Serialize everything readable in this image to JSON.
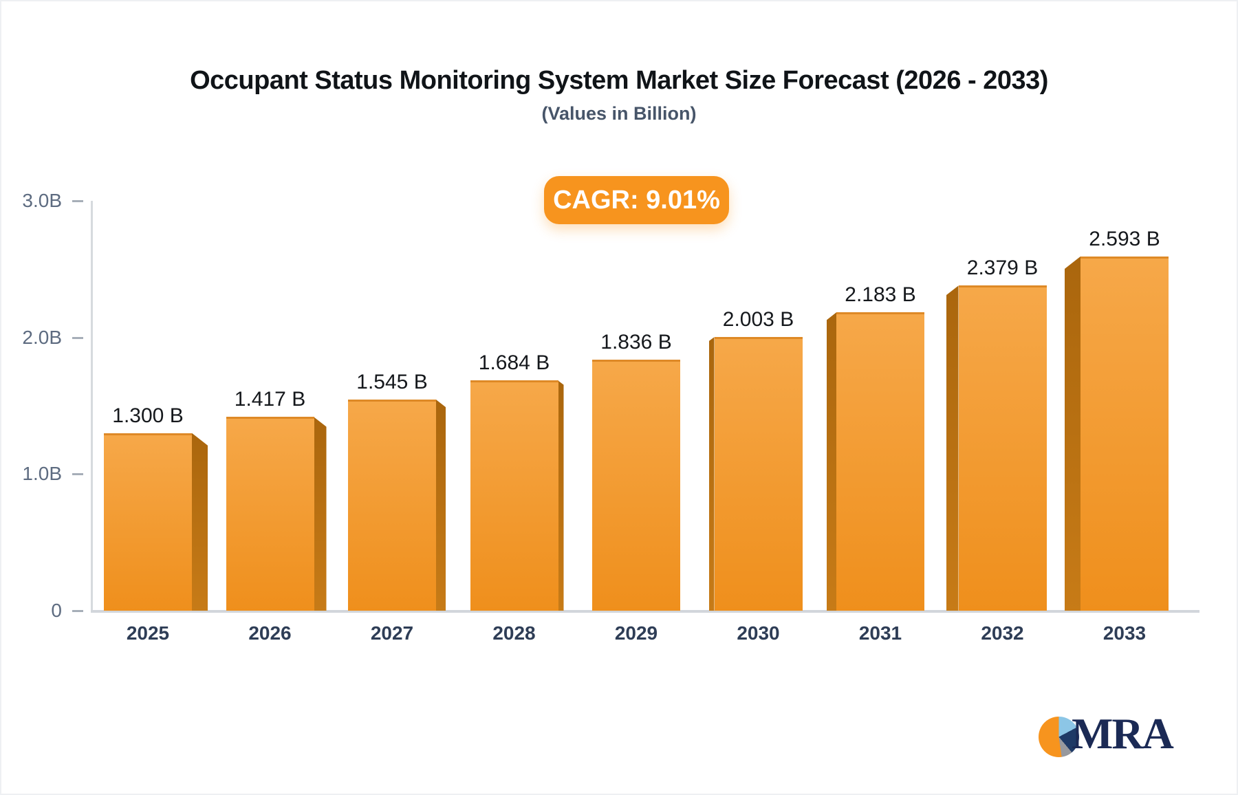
{
  "chart_data": {
    "type": "bar",
    "title": "Occupant Status Monitoring System Market Size Forecast (2026 - 2033)",
    "subtitle": "(Values in Billion)",
    "annotation": "CAGR: 9.01%",
    "categories": [
      "2025",
      "2026",
      "2027",
      "2028",
      "2029",
      "2030",
      "2031",
      "2032",
      "2033"
    ],
    "values": [
      1.3,
      1.417,
      1.545,
      1.684,
      1.836,
      2.003,
      2.183,
      2.379,
      2.593
    ],
    "value_labels": [
      "1.300 B",
      "1.417 B",
      "1.545 B",
      "1.684 B",
      "1.836 B",
      "2.003 B",
      "2.183 B",
      "2.379 B",
      "2.593 B"
    ],
    "xlabel": "",
    "ylabel": "",
    "ylim": [
      0,
      3.0
    ],
    "yticks": [
      {
        "label": "3.0B",
        "value": 3.0
      },
      {
        "label": "2.0B",
        "value": 2.0
      },
      {
        "label": "1.0B",
        "value": 1.0
      },
      {
        "label": "0",
        "value": 0
      }
    ],
    "grid": false,
    "legend": false,
    "bar_style": "3d-perspective",
    "bar_color": "#F7941E"
  },
  "colors": {
    "accent_orange": "#F7941E",
    "bar_face_top": "#F6A849",
    "bar_face_bottom": "#EF8F1C",
    "bar_side_top": "#AA660D",
    "bar_side_bottom": "#C77B17",
    "logo_navy": "#1B2A55"
  },
  "branding": {
    "logo_text": "MRA",
    "logo_icon": "pie-chart-icon"
  }
}
